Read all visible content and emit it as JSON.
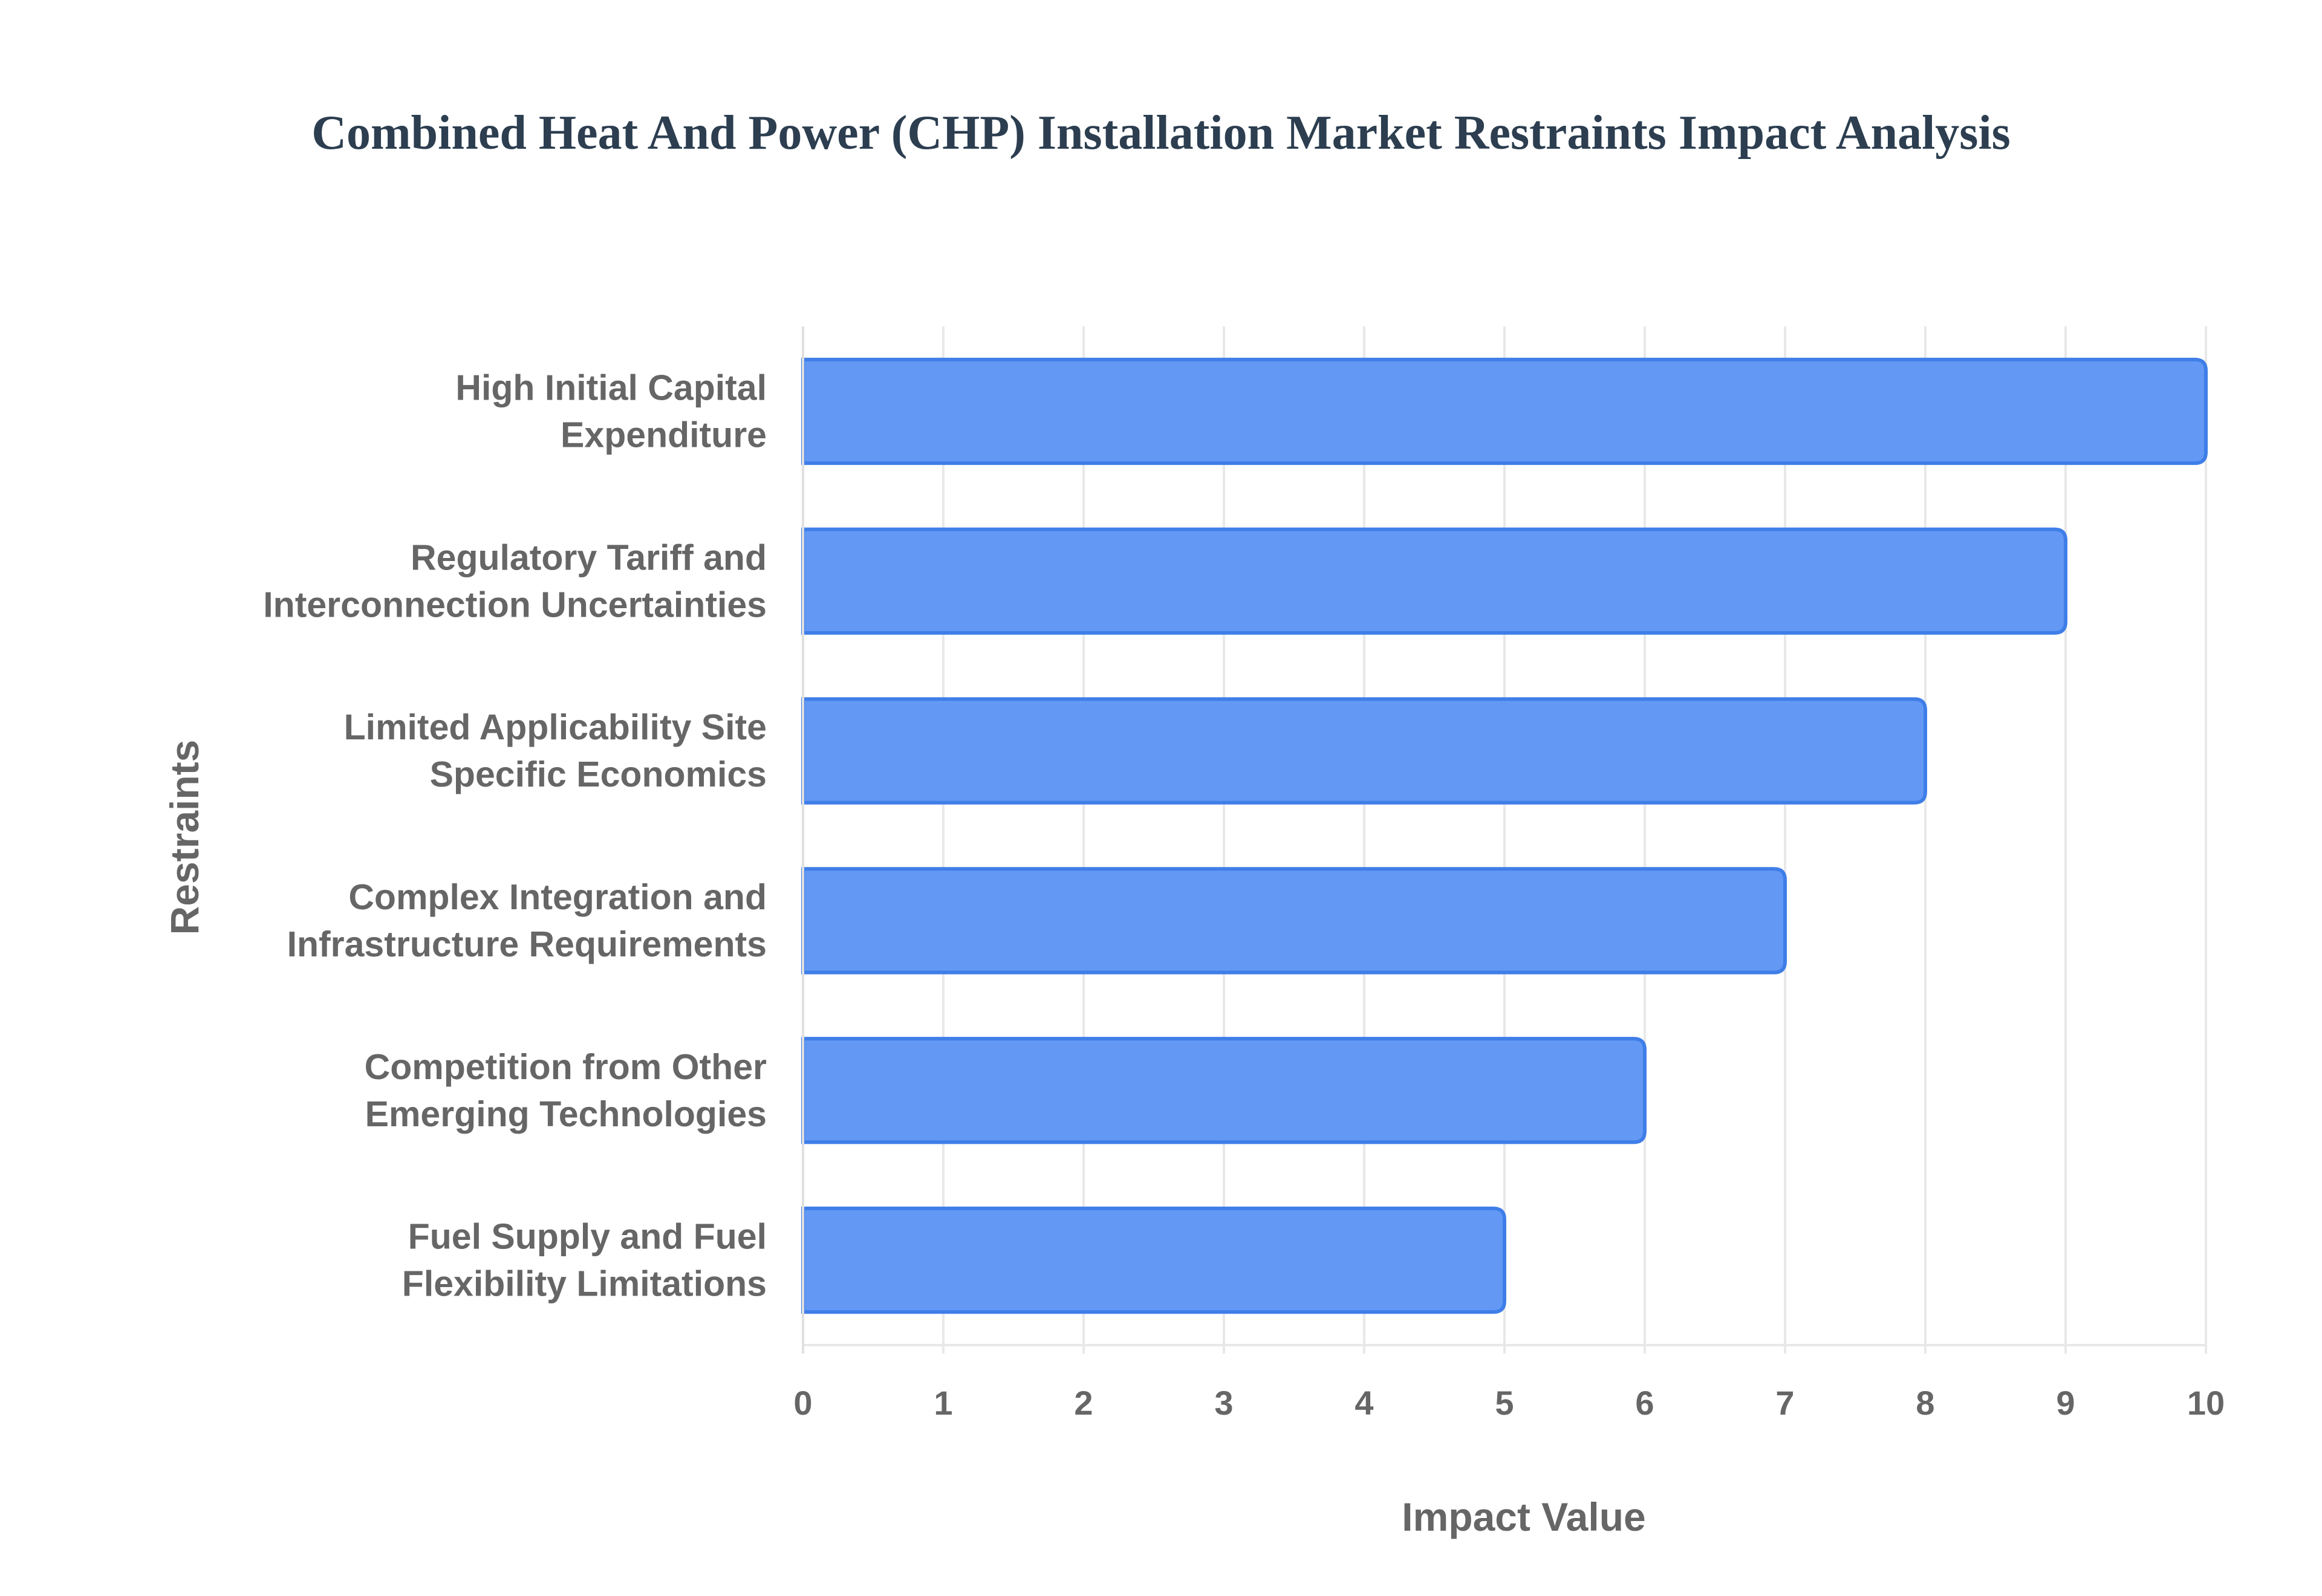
{
  "chart_data": {
    "type": "bar",
    "orientation": "horizontal",
    "title": "Combined Heat And Power (CHP) Installation Market Restraints Impact Analysis",
    "xlabel": "Impact Value",
    "ylabel": "Restraints",
    "xlim": [
      0,
      10
    ],
    "x_ticks": [
      "0",
      "1",
      "2",
      "3",
      "4",
      "5",
      "6",
      "7",
      "8",
      "9",
      "10"
    ],
    "grid": true,
    "categories": [
      [
        "High Initial Capital",
        "Expenditure"
      ],
      [
        "Regulatory Tariff and",
        "Interconnection Uncertainties"
      ],
      [
        "Limited Applicability Site",
        "Specific Economics"
      ],
      [
        "Complex Integration and",
        "Infrastructure Requirements"
      ],
      [
        "Competition from Other",
        "Emerging Technologies"
      ],
      [
        "Fuel Supply and Fuel",
        "Flexibility Limitations"
      ]
    ],
    "values": [
      10,
      9,
      8,
      7,
      6,
      5
    ],
    "colors": {
      "bar_fill": "#6399f4",
      "bar_stroke": "#3f7ee8",
      "grid": "#e8e8e8",
      "title": "#2c3e50",
      "text": "#666666"
    }
  }
}
